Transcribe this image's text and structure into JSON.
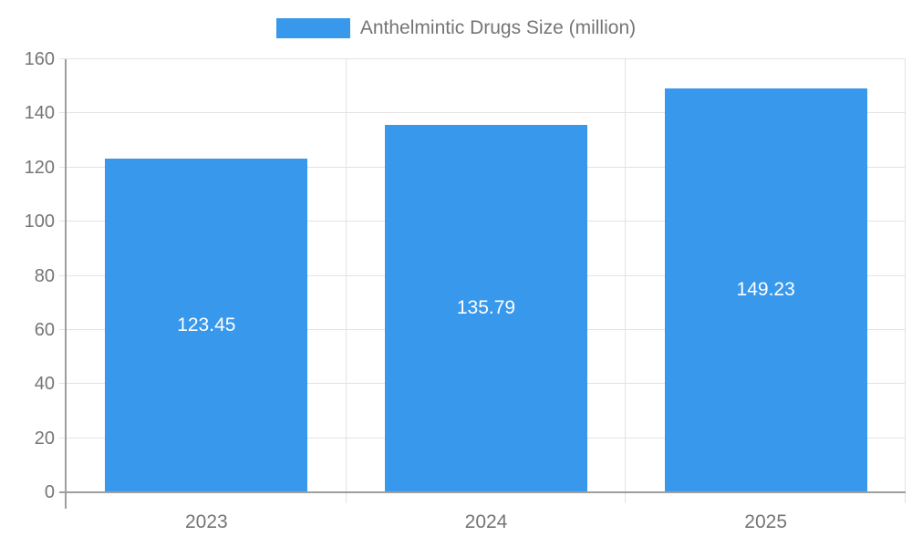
{
  "legend": {
    "label": "Anthelmintic Drugs Size (million)"
  },
  "chart_data": {
    "type": "bar",
    "title": "Anthelmintic Drugs Size (million)",
    "categories": [
      "2023",
      "2024",
      "2025"
    ],
    "series": [
      {
        "name": "Anthelmintic Drugs Size (million)",
        "values": [
          123.45,
          135.79,
          149.23
        ]
      }
    ],
    "bar_labels": [
      "123.45",
      "135.79",
      "149.23"
    ],
    "xlabel": "",
    "ylabel": "",
    "ylim": [
      0,
      160
    ],
    "yticks": [
      0,
      20,
      40,
      60,
      80,
      100,
      120,
      140,
      160
    ],
    "grid": true,
    "legend_position": "top-center",
    "colors": {
      "bar": "#3898EC",
      "bar_label_text": "#FFFFFF",
      "axis_text": "#757575",
      "axis_line": "#9E9E9E",
      "gridline": "#E3E3E3",
      "background": "#FFFFFF"
    }
  }
}
